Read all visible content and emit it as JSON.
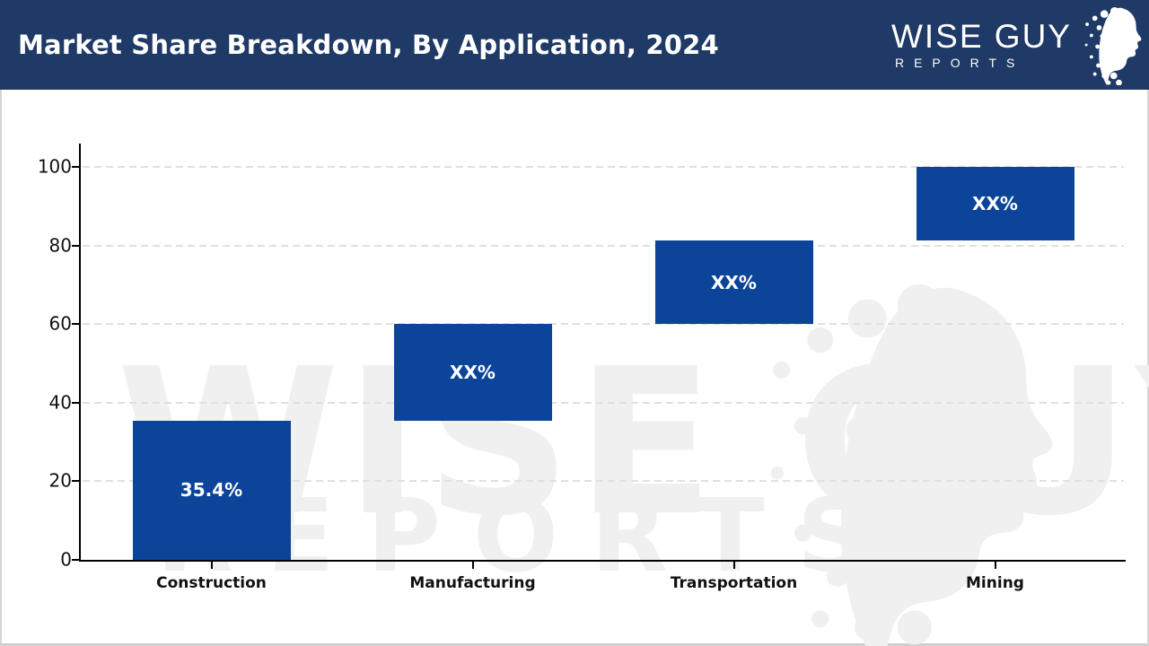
{
  "header": {
    "title": "Market Share Breakdown, By Application, 2024",
    "logo": {
      "line1": "WISE GUY",
      "line2": "REPORTS"
    }
  },
  "watermark": {
    "line1": "WISE GUY",
    "line2": "REPORTS"
  },
  "chart_data": {
    "type": "bar",
    "subtype": "waterfall",
    "title": "Market Share Breakdown, By Application, 2024",
    "categories": [
      "Construction",
      "Manufacturing",
      "Transportation",
      "Mining"
    ],
    "segments": [
      {
        "category": "Construction",
        "start": 0,
        "end": 35.4,
        "label": "35.4%"
      },
      {
        "category": "Manufacturing",
        "start": 35.4,
        "end": 60.0,
        "label": "XX%"
      },
      {
        "category": "Transportation",
        "start": 60.0,
        "end": 81.2,
        "label": "XX%"
      },
      {
        "category": "Mining",
        "start": 81.2,
        "end": 100.0,
        "label": "XX%"
      }
    ],
    "xlabel": "",
    "ylabel": "",
    "ylim": [
      0,
      100
    ],
    "yticks": [
      0,
      20,
      40,
      60,
      80,
      100
    ],
    "grid": "horizontal-dashed",
    "legend": "none",
    "bar_color": "#0B4499",
    "bar_label_color": "#ffffff",
    "header_bg_color": "#1F3A66",
    "grid_color": "#e0e0e0",
    "axis_color": "#000000"
  }
}
